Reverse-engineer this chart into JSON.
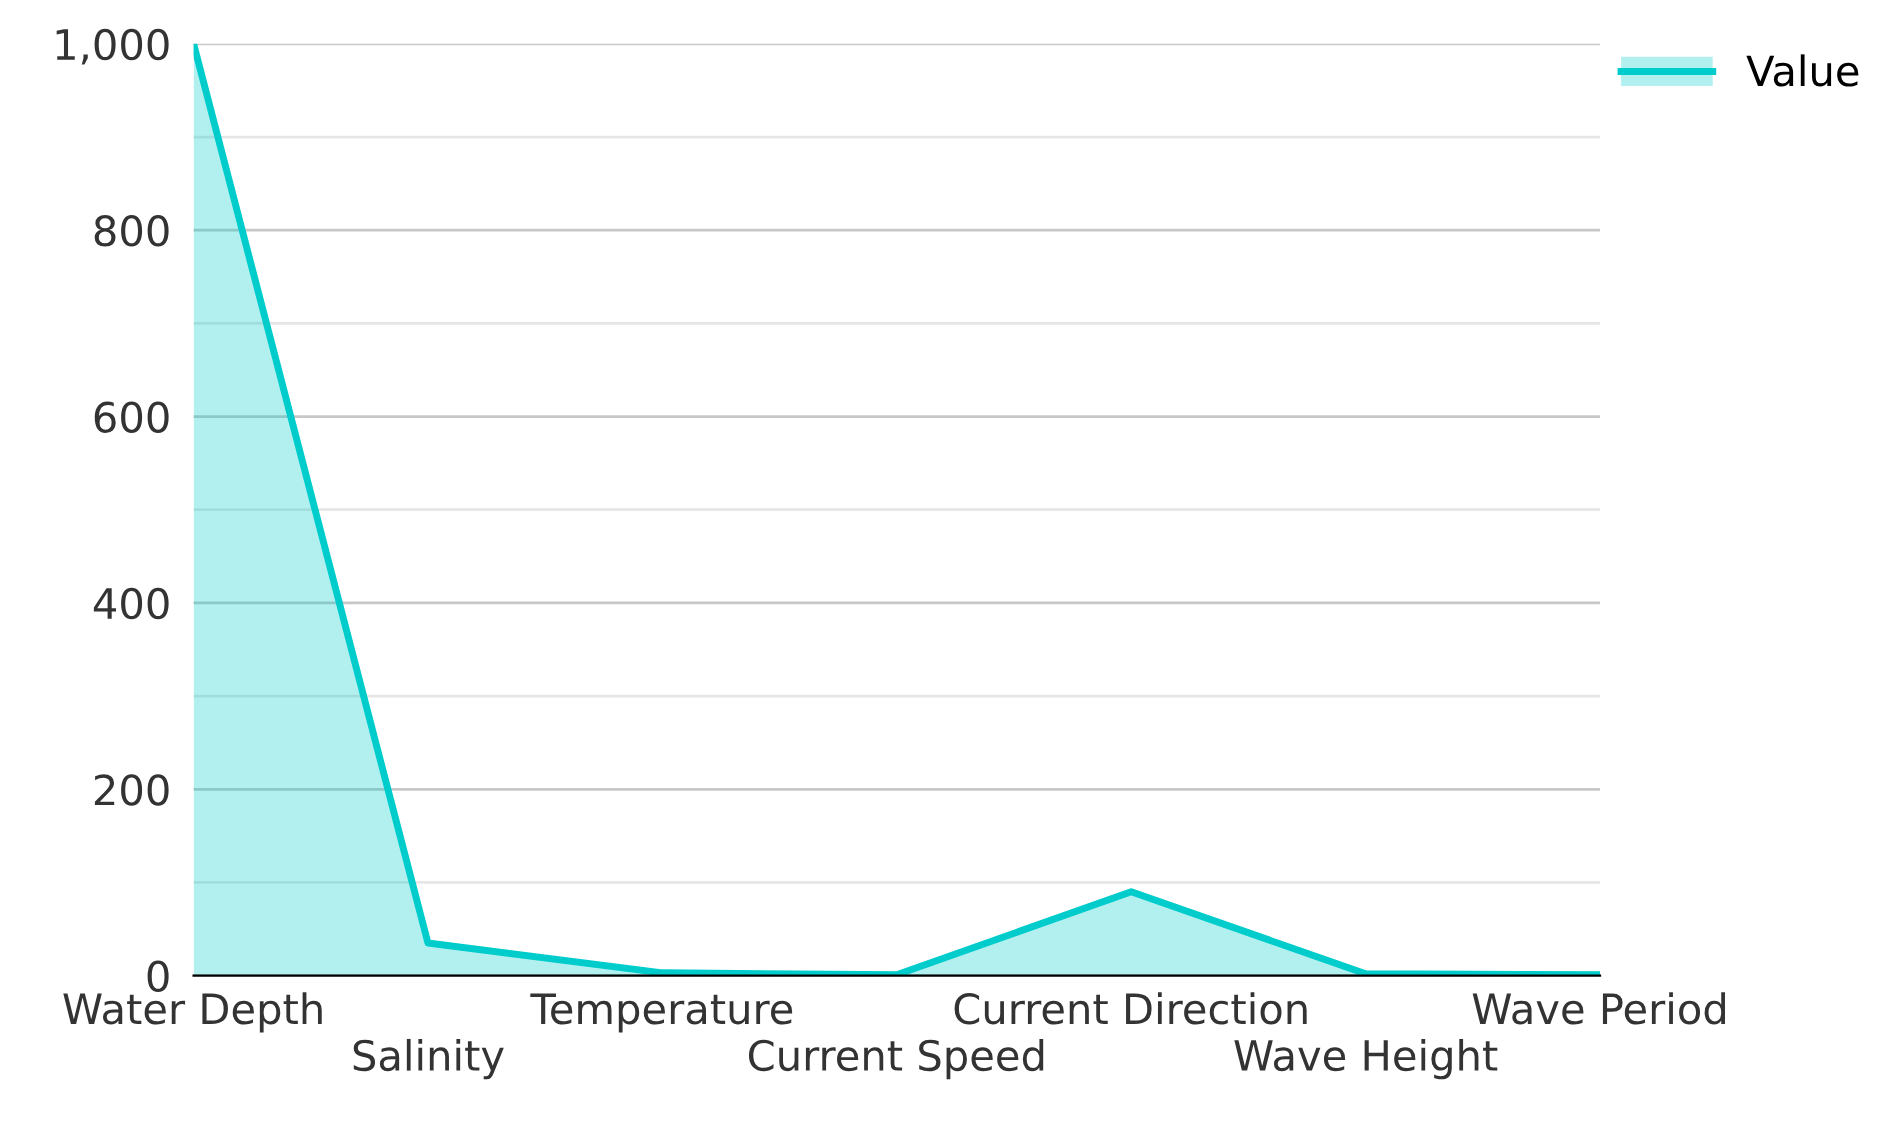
{
  "chart_data": {
    "type": "area",
    "categories": [
      "Water Depth",
      "Salinity",
      "Temperature",
      "Current Speed",
      "Current Direction",
      "Wave Height",
      "Wave Period"
    ],
    "series": [
      {
        "name": "Value",
        "color": "#00cccc",
        "values": [
          1000,
          35,
          3,
          1,
          90,
          2,
          1
        ]
      }
    ],
    "ylim": [
      0,
      1000
    ],
    "yticks": [
      0,
      {
        "value": 100,
        "label": null
      },
      200,
      {
        "value": 300,
        "label": null
      },
      400,
      {
        "value": 500,
        "label": null
      },
      600,
      {
        "value": 700,
        "label": null
      },
      800,
      {
        "value": 900,
        "label": null
      },
      {
        "value": 1000,
        "label": "1,000"
      }
    ],
    "grid": "y",
    "legend": "top right",
    "marker": "none",
    "line_style": "solid"
  }
}
